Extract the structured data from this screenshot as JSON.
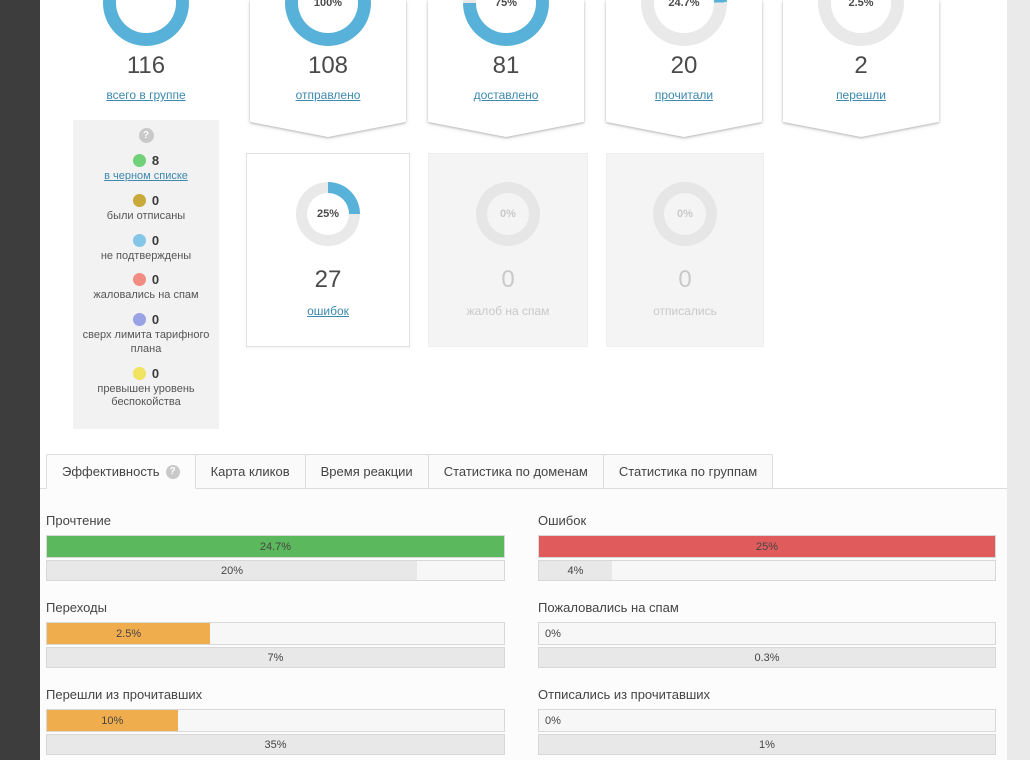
{
  "colors": {
    "accent_blue": "#58b1d8",
    "donut_track": "#e9e9e9",
    "gray_donut_ring": "#e6e6e6",
    "gray_card_bg": "#f4f4f4",
    "green": "#5cb85c",
    "orange": "#f0ad4e",
    "red": "#e05c5c",
    "link": "#3c88ae",
    "bar_track": "#f7f7f7",
    "bar_avg_fill": "#e8e8e8",
    "muted_text": "#c9c9c9"
  },
  "summary_cards": [
    {
      "percent_label": "",
      "percent": 93,
      "value": "116",
      "label": "всего в группе"
    },
    {
      "percent_label": "100%",
      "percent": 100,
      "value": "108",
      "label": "отправлено"
    },
    {
      "percent_label": "75%",
      "percent": 75,
      "value": "81",
      "label": "доставлено"
    },
    {
      "percent_label": "24.7%",
      "percent": 24.7,
      "value": "20",
      "label": "прочитали"
    },
    {
      "percent_label": "2.5%",
      "percent": 2.5,
      "value": "2",
      "label": "перешли"
    }
  ],
  "legend": {
    "help": "?",
    "items": [
      {
        "color": "#71d178",
        "value": "8",
        "label": "в черном списке",
        "link": true
      },
      {
        "color": "#c8a93a",
        "value": "0",
        "label": "были отписаны",
        "link": false
      },
      {
        "color": "#85c6e8",
        "value": "0",
        "label": "не подтверждены",
        "link": false
      },
      {
        "color": "#f28b82",
        "value": "0",
        "label": "жаловались на спам",
        "link": false
      },
      {
        "color": "#98a2e5",
        "value": "0",
        "label": "сверх лимита тарифного плана",
        "link": false
      },
      {
        "color": "#f0e35f",
        "value": "0",
        "label": "превышен уровень беспокойства",
        "link": false
      }
    ]
  },
  "secondary_cards": [
    {
      "percent_label": "25%",
      "percent": 25,
      "value": "27",
      "label": "ошибок",
      "active": true
    },
    {
      "percent_label": "0%",
      "percent": 0,
      "value": "0",
      "label": "жалоб на спам",
      "active": false
    },
    {
      "percent_label": "0%",
      "percent": 0,
      "value": "0",
      "label": "отписались",
      "active": false
    }
  ],
  "tabs": [
    {
      "label": "Эффективность",
      "active": true,
      "help": true,
      "help_label": "?"
    },
    {
      "label": "Карта кликов",
      "active": false,
      "help": false
    },
    {
      "label": "Время реакции",
      "active": false,
      "help": false
    },
    {
      "label": "Статистика по доменам",
      "active": false,
      "help": false
    },
    {
      "label": "Статистика по группам",
      "active": false,
      "help": false
    }
  ],
  "chart_data": {
    "type": "bar",
    "title": "Эффективность",
    "note": "Each metric shows your value (colored bar) vs average (gray bar); bars scaled to max(value, average)",
    "columns": [
      {
        "metrics": [
          {
            "label": "Прочтение",
            "value": 24.7,
            "value_label": "24.7%",
            "average": 20,
            "average_label": "20%",
            "color": "#5cb85c"
          },
          {
            "label": "Переходы",
            "value": 2.5,
            "value_label": "2.5%",
            "average": 7,
            "average_label": "7%",
            "color": "#f0ad4e"
          },
          {
            "label": "Перешли из прочитавших",
            "value": 10,
            "value_label": "10%",
            "average": 35,
            "average_label": "35%",
            "color": "#f0ad4e"
          }
        ]
      },
      {
        "metrics": [
          {
            "label": "Ошибок",
            "value": 25,
            "value_label": "25%",
            "average": 4,
            "average_label": "4%",
            "color": "#e05c5c"
          },
          {
            "label": "Пожаловались на спам",
            "value": 0,
            "value_label": "0%",
            "average": 0.3,
            "average_label": "0.3%",
            "color": "#f0ad4e"
          },
          {
            "label": "Отписались из прочитавших",
            "value": 0,
            "value_label": "0%",
            "average": 1,
            "average_label": "1%",
            "color": "#f0ad4e"
          }
        ]
      }
    ]
  }
}
